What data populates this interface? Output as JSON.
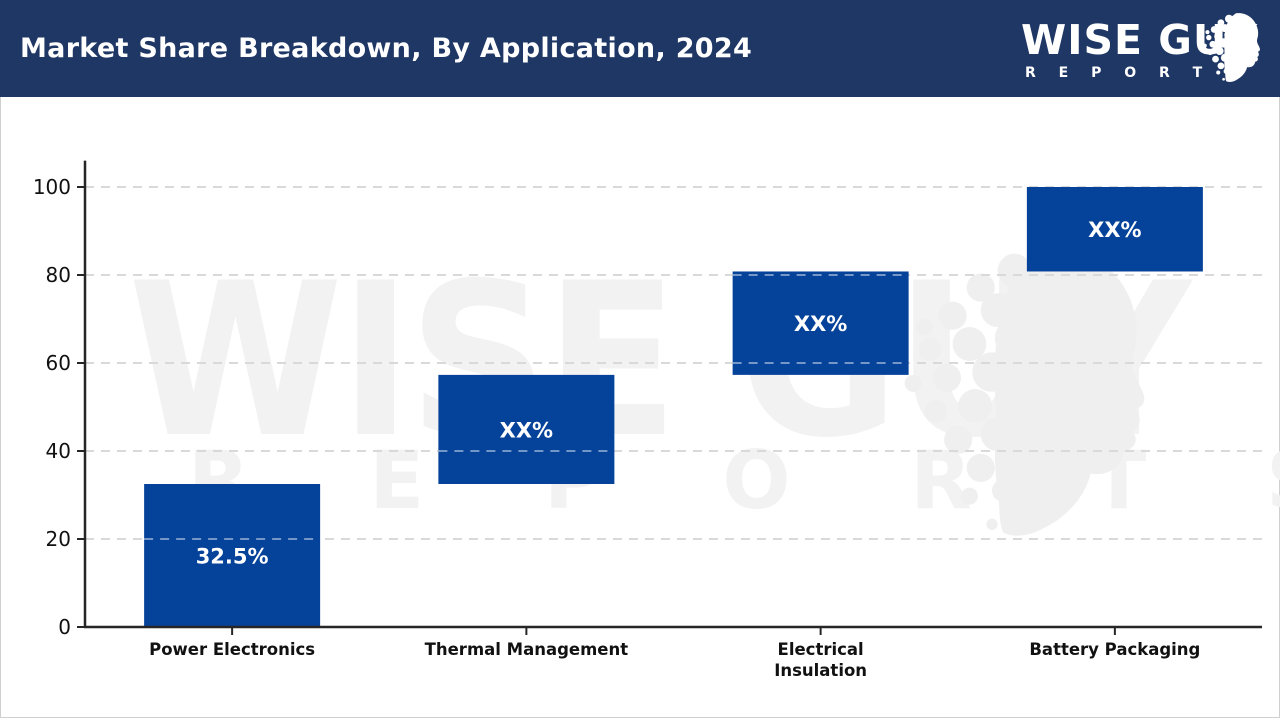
{
  "header": {
    "title": "Market Share Breakdown, By Application, 2024",
    "logo": {
      "line1": "WISE GUY",
      "line2": "R E P O R T S"
    }
  },
  "watermark": {
    "line1": "WISE GUY",
    "line2": "R E P O R T S"
  },
  "chart_data": {
    "type": "bar",
    "subtype": "waterfall",
    "title": "Market Share Breakdown, By Application, 2024",
    "categories": [
      "Power Electronics",
      "Thermal Management",
      "Electrical Insulation",
      "Battery Packaging"
    ],
    "category_label_lines": [
      [
        "Power Electronics"
      ],
      [
        "Thermal Management"
      ],
      [
        "Electrical",
        "Insulation"
      ],
      [
        "Battery Packaging"
      ]
    ],
    "segments": [
      {
        "category": "Power Electronics",
        "start": 0,
        "end": 32.5,
        "label": "32.5%"
      },
      {
        "category": "Thermal Management",
        "start": 32.5,
        "end": 57.3,
        "label": "XX%"
      },
      {
        "category": "Electrical Insulation",
        "start": 57.3,
        "end": 80.8,
        "label": "XX%"
      },
      {
        "category": "Battery Packaging",
        "start": 80.8,
        "end": 100,
        "label": "XX%"
      }
    ],
    "y_ticks": [
      0,
      20,
      40,
      60,
      80,
      100
    ],
    "ylim": [
      0,
      106
    ],
    "grid": "dashed-horizontal",
    "legend": "none",
    "xlabel": "",
    "ylabel": "",
    "bar_color": "#05429a",
    "value_label_color": "#ffffff",
    "axis_color": "#262626",
    "grid_color": "#d9d9d9",
    "tick_label_color": "#111111"
  },
  "colors": {
    "header_bg": "#1f3765",
    "page_bg": "#ffffff",
    "page_border": "#cfcfcf",
    "watermark": "#f2f2f2"
  }
}
